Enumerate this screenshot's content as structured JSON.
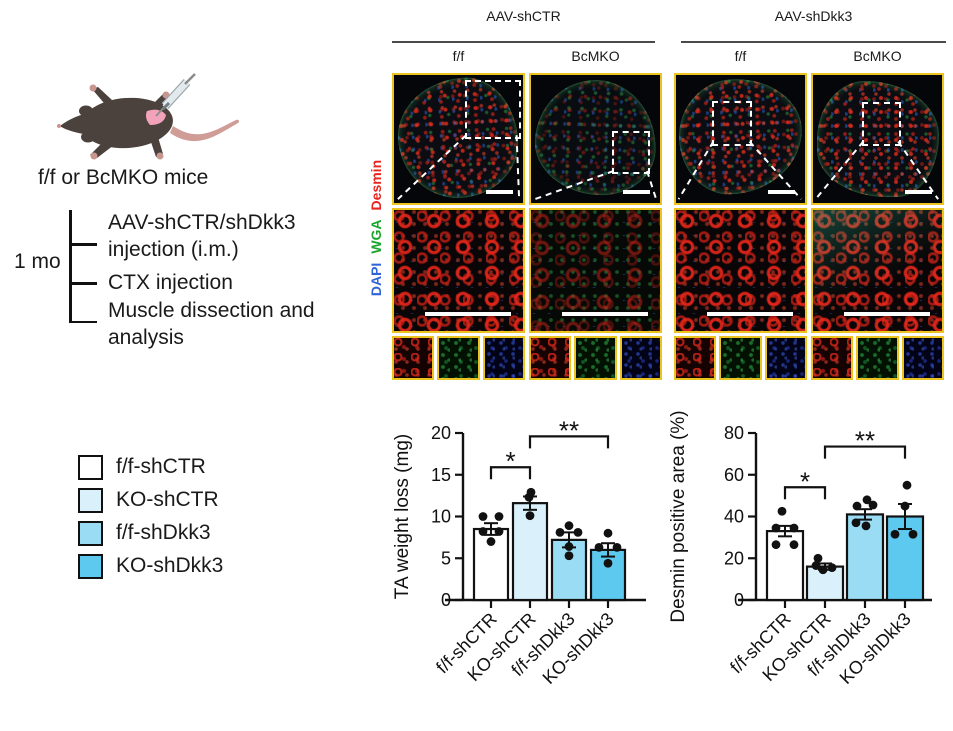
{
  "figure": {
    "schematic": {
      "caption": "f/f or BcMKO mice",
      "duration": "1 mo",
      "events": [
        "AAV-shCTR/shDkk3 injection (i.m.)",
        "CTX injection",
        "Muscle dissection and analysis"
      ]
    },
    "microscopy": {
      "groups": [
        {
          "label": "AAV-shCTR",
          "columns": [
            "f/f",
            "BcMKO"
          ]
        },
        {
          "label": "AAV-shDkk3",
          "columns": [
            "f/f",
            "BcMKO"
          ]
        }
      ],
      "stains": [
        {
          "label": "DAPI",
          "color": "#2f63d8"
        },
        {
          "label": "WGA",
          "color": "#17a62a"
        },
        {
          "label": "Desmin",
          "color": "#e8241e"
        }
      ]
    },
    "legend": [
      {
        "label": "f/f-shCTR",
        "color": "#ffffff"
      },
      {
        "label": "KO-shCTR",
        "color": "#daf0fa"
      },
      {
        "label": "f/f-shDkk3",
        "color": "#9adcf3"
      },
      {
        "label": "KO-shDkk3",
        "color": "#5ec9ef"
      }
    ]
  },
  "chart_data": [
    {
      "type": "bar",
      "title": "",
      "ylabel": "TA weight loss (mg)",
      "xlabel": "",
      "categories": [
        "f/f-shCTR",
        "KO-shCTR",
        "f/f-shDkk3",
        "KO-shDkk3"
      ],
      "values": [
        8.5,
        11.6,
        7.2,
        6.0
      ],
      "errors": [
        0.7,
        0.8,
        0.9,
        0.8
      ],
      "points": [
        [
          10,
          10,
          8.2,
          8.2,
          7
        ],
        [
          12.9,
          12.3,
          10.1
        ],
        [
          8.9,
          8.1,
          8.1,
          6.4,
          5.3
        ],
        [
          8.0,
          6.3,
          6.3,
          4.4
        ]
      ],
      "jitter": [
        [
          -8,
          8,
          -8,
          8,
          0
        ],
        [
          1,
          -1,
          0
        ],
        [
          0,
          -9,
          9,
          0,
          0
        ],
        [
          0,
          -9,
          9,
          0
        ]
      ],
      "bar_colors": [
        "#ffffff",
        "#daf0fa",
        "#9adcf3",
        "#5ec9ef"
      ],
      "ylim": [
        0,
        20
      ],
      "yticks": [
        0,
        5,
        10,
        15,
        20
      ],
      "grid": false,
      "significance": [
        {
          "from": 0,
          "to": 1,
          "label": "*",
          "y": 15.9
        },
        {
          "from": 1,
          "to": 3,
          "label": "**",
          "y": 19.6
        }
      ]
    },
    {
      "type": "bar",
      "title": "",
      "ylabel": "Desmin positive area (%)",
      "xlabel": "",
      "categories": [
        "f/f-shCTR",
        "KO-shCTR",
        "f/f-shDkk3",
        "KO-shDkk3"
      ],
      "values": [
        33,
        16,
        41,
        40
      ],
      "errors": [
        2.5,
        1.5,
        2.5,
        6.0
      ],
      "points": [
        [
          42.5,
          34.5,
          34.5,
          26.5,
          26.5
        ],
        [
          20,
          16.5,
          15.5,
          14.5
        ],
        [
          48,
          45,
          45.5,
          37,
          35.5
        ],
        [
          55,
          45,
          31.5,
          31.5
        ]
      ],
      "jitter": [
        [
          -3,
          -9,
          9,
          -9,
          9
        ],
        [
          -7,
          -9,
          7,
          -2
        ],
        [
          2,
          -8,
          8,
          -9,
          1
        ],
        [
          2,
          0,
          -10,
          8
        ]
      ],
      "bar_colors": [
        "#ffffff",
        "#daf0fa",
        "#9adcf3",
        "#5ec9ef"
      ],
      "ylim": [
        0,
        80
      ],
      "yticks": [
        0,
        20,
        40,
        60,
        80
      ],
      "grid": false,
      "significance": [
        {
          "from": 0,
          "to": 1,
          "label": "*",
          "y": 54
        },
        {
          "from": 1,
          "to": 3,
          "label": "**",
          "y": 73.5
        }
      ]
    }
  ]
}
